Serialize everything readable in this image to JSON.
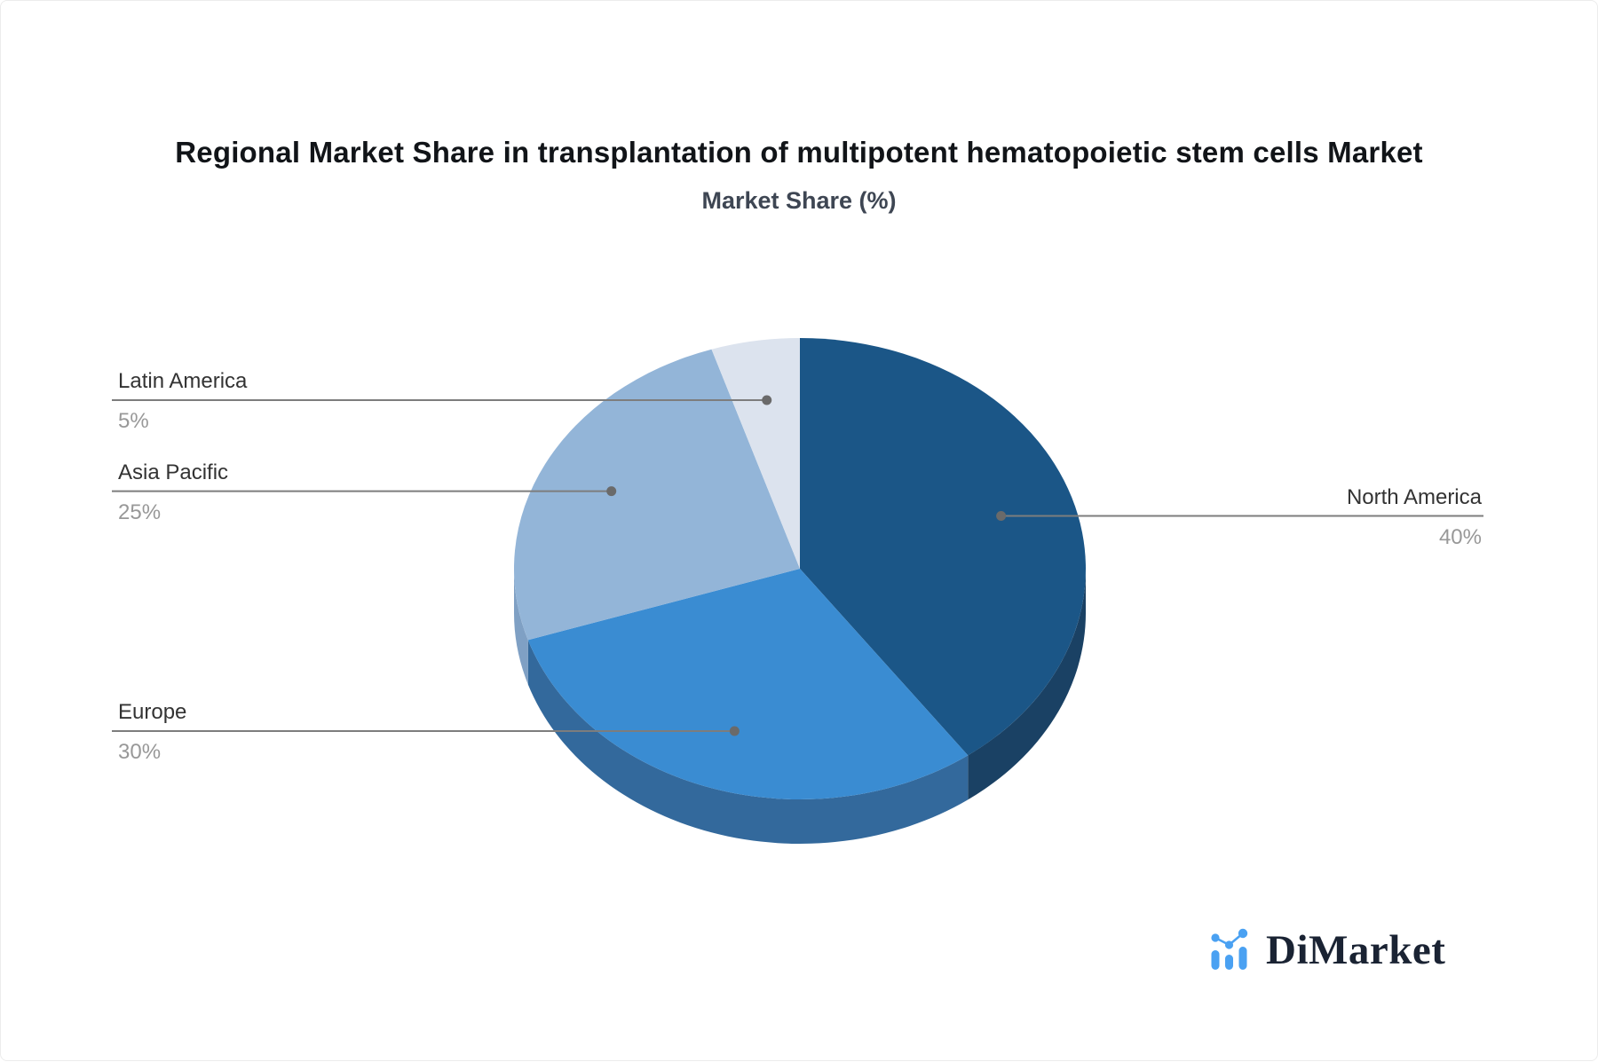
{
  "chart_data": {
    "type": "pie",
    "title": "Regional Market Share in transplantation of multipotent hematopoietic stem cells Market",
    "subtitle": "Market Share (%)",
    "unit": "%",
    "style": "3d-pie",
    "start_angle_deg": 0,
    "direction": "clockwise",
    "legend_position": "callout-labels",
    "slices": [
      {
        "label": "North America",
        "value": 40,
        "display": "40%",
        "color_top": "#1B5687",
        "color_side": "#1A4164",
        "label_side": "right"
      },
      {
        "label": "Europe",
        "value": 30,
        "display": "30%",
        "color_top": "#3A8CD2",
        "color_side": "#33699C",
        "label_side": "left"
      },
      {
        "label": "Asia Pacific",
        "value": 25,
        "display": "25%",
        "color_top": "#93B5D8",
        "color_side": "#7FA0C4",
        "label_side": "left"
      },
      {
        "label": "Latin America",
        "value": 5,
        "display": "5%",
        "color_top": "#DCE3EE",
        "color_side": "#C3CDDD",
        "label_side": "left"
      }
    ]
  },
  "branding": {
    "name": "DiMarket"
  },
  "colors": {
    "title": "#111418",
    "subtitle": "#3E4653",
    "label": "#333333",
    "value": "#989898",
    "leader_line": "#7D7D7D",
    "leader_dot": "#6A6A6A",
    "brand_text": "#1A2333",
    "brand_icon": "#4AA1F2"
  }
}
